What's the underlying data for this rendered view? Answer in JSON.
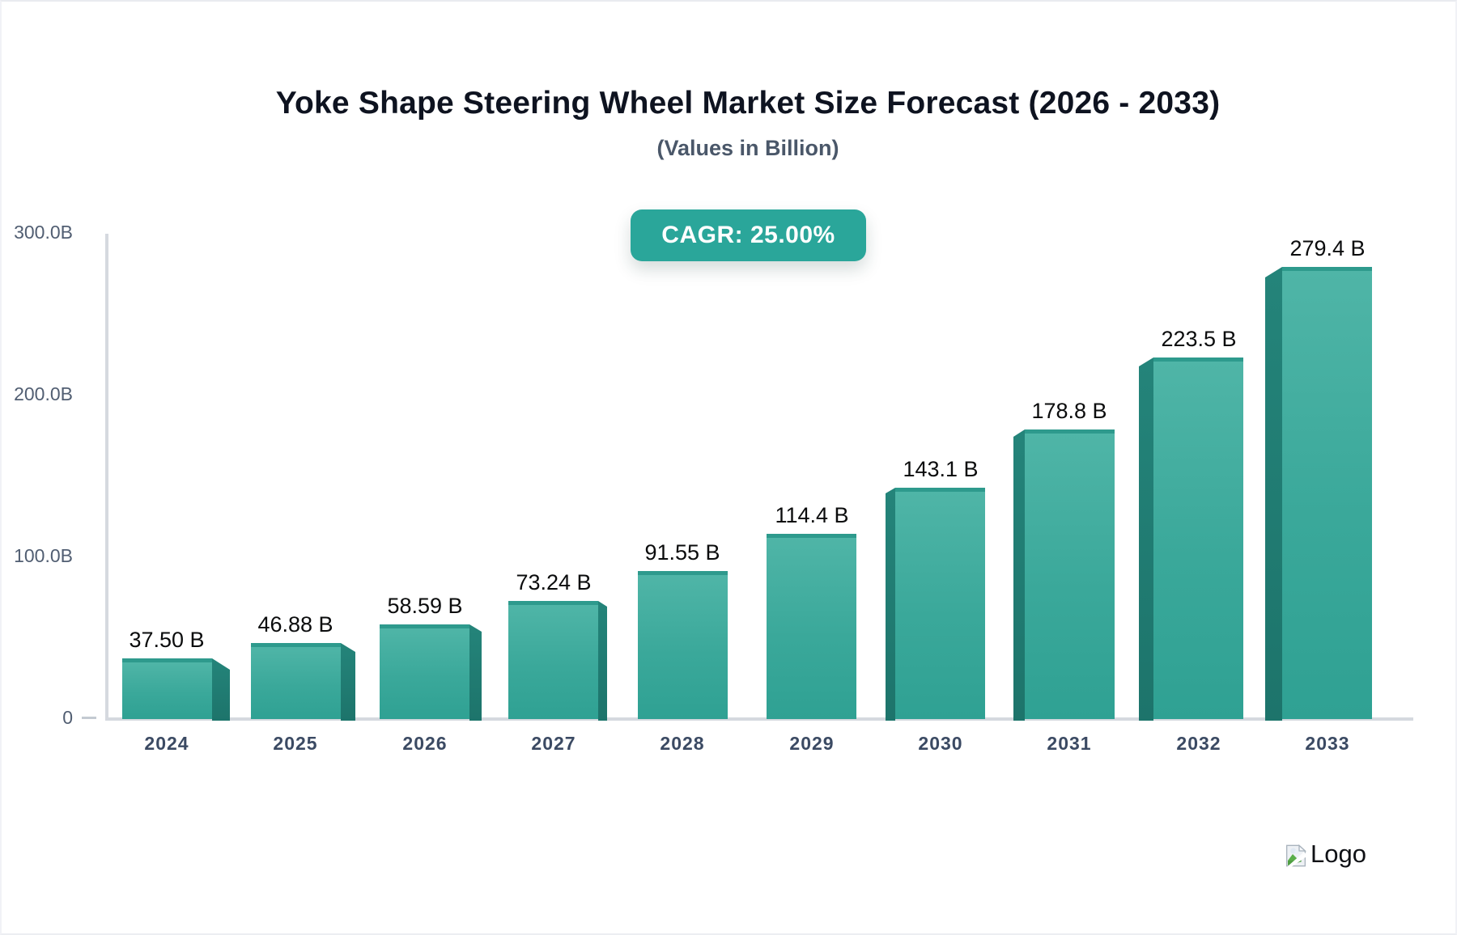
{
  "header": {
    "title": "Yoke Shape Steering Wheel Market Size Forecast (2026 - 2033)",
    "subtitle": "(Values in Billion)"
  },
  "cagr_badge": {
    "label": "CAGR: 25.00%"
  },
  "chart_data": {
    "type": "bar",
    "title": "Yoke Shape Steering Wheel Market Size Forecast (2026 - 2033)",
    "subtitle": "(Values in Billion)",
    "categories": [
      "2024",
      "2025",
      "2026",
      "2027",
      "2028",
      "2029",
      "2030",
      "2031",
      "2032",
      "2033"
    ],
    "values": [
      37.5,
      46.88,
      58.59,
      73.24,
      91.55,
      114.4,
      143.1,
      178.8,
      223.5,
      279.4
    ],
    "value_labels": [
      "37.50 B",
      "46.88 B",
      "58.59 B",
      "73.24 B",
      "91.55 B",
      "114.4 B",
      "143.1 B",
      "178.8 B",
      "223.5 B",
      "279.4 B"
    ],
    "unit": "Billion",
    "cagr_label": "CAGR: 25.00%",
    "y_ticks": [
      {
        "value": 300,
        "label": "300.0B"
      },
      {
        "value": 200,
        "label": "200.0B"
      },
      {
        "value": 100,
        "label": "100.0B"
      },
      {
        "value": 0,
        "label": "0"
      }
    ],
    "ylim": [
      0,
      300
    ],
    "grid": "off",
    "legend": "none"
  },
  "footer": {
    "logo_text": "Logo"
  },
  "colors": {
    "bar_face": "#3aa89a",
    "bar_face_light": "#4fb5a7",
    "bar_side": "#1f7a70",
    "bar_top_edge": "#2e9a8d",
    "badge_bg": "#2aa69a",
    "axis_line": "#d5d9df",
    "title_text": "#0e1320",
    "subtitle_text": "#4a5769",
    "y_tick_text": "#515e72",
    "x_tick_text": "#3b4a63",
    "value_text": "#0b0c0d"
  }
}
